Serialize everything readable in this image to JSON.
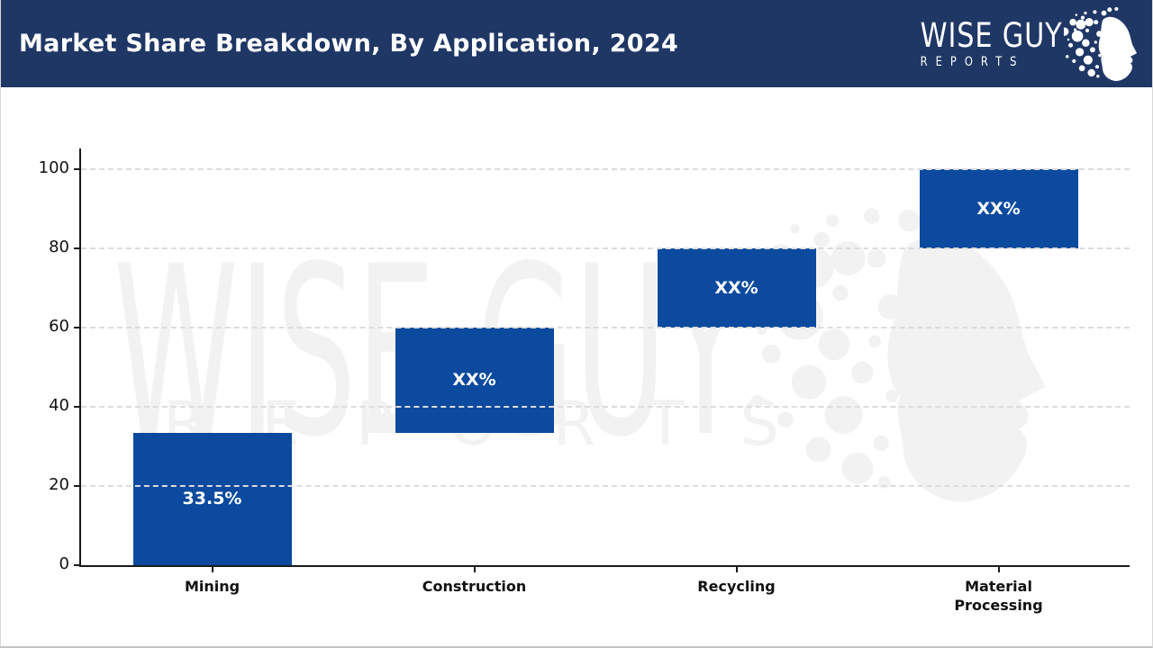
{
  "header": {
    "title": "Market Share Breakdown, By Application, 2024",
    "logo": {
      "line1": "WISE GUY",
      "line2": "REPORTS"
    }
  },
  "watermark": {
    "line1": "WISE GUY",
    "line2": "REPORTS"
  },
  "colors": {
    "header_bg": "#1f3765",
    "bar": "#0b4a9e",
    "grid": "#dcdcdc",
    "axis": "#1a1a1a",
    "watermark": "#f2f2f2"
  },
  "chart_data": {
    "type": "bar",
    "subtype": "waterfall",
    "title": "Market Share Breakdown, By Application, 2024",
    "categories": [
      "Mining",
      "Construction",
      "Recycling",
      "Material Processing"
    ],
    "segments": [
      {
        "category": "Mining",
        "start": 0,
        "end": 33.5,
        "label": "33.5%"
      },
      {
        "category": "Construction",
        "start": 33.5,
        "end": 60,
        "label": "XX%"
      },
      {
        "category": "Recycling",
        "start": 60,
        "end": 80,
        "label": "XX%"
      },
      {
        "category": "Material Processing",
        "start": 80,
        "end": 100,
        "label": "XX%"
      }
    ],
    "ylim": [
      0,
      100
    ],
    "yticks": [
      0,
      20,
      40,
      60,
      80,
      100
    ],
    "xlabel": "",
    "ylabel": "",
    "grid": true,
    "grid_style": "dashed",
    "legend": false
  }
}
